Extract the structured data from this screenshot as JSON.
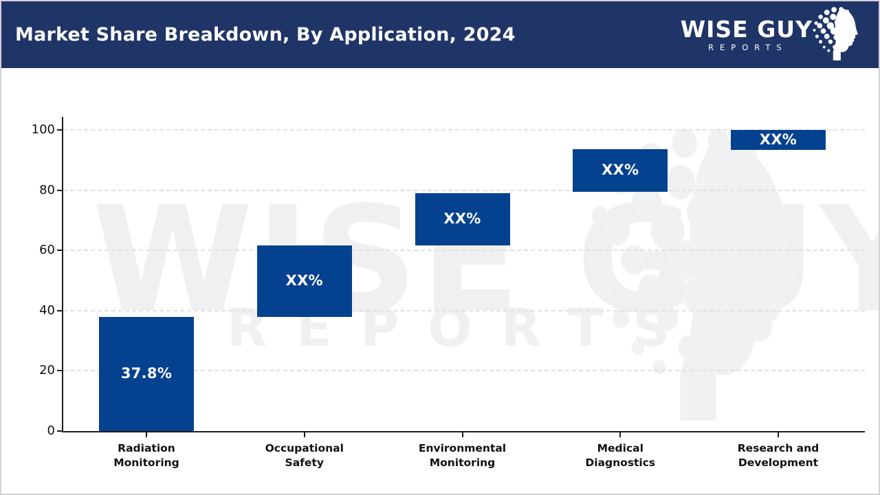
{
  "header": {
    "title": "Market Share Breakdown, By Application, 2024",
    "logo": {
      "primary": "WISE GUY",
      "secondary": "REPORTS"
    }
  },
  "watermark": {
    "primary": "WISE GUY",
    "secondary": "REPORTS"
  },
  "colors": {
    "header_bg": "#1f3467",
    "bar": "#04418f",
    "bar_label": "#ffffff",
    "watermark": "#f0f1f3",
    "gridline": "#e0e0e0",
    "axis": "#1a1a1a"
  },
  "chart_data": {
    "type": "bar",
    "subtype": "waterfall",
    "title": "Market Share Breakdown, By Application, 2024",
    "categories": [
      "Radiation Monitoring",
      "Occupational Safety",
      "Environmental Monitoring",
      "Medical Diagnostics",
      "Research and Development"
    ],
    "category_lines": [
      [
        "Radiation",
        "Monitoring"
      ],
      [
        "Occupational",
        "Safety"
      ],
      [
        "Environmental",
        "Monitoring"
      ],
      [
        "Medical",
        "Diagnostics"
      ],
      [
        "Research and",
        "Development"
      ]
    ],
    "segments": [
      {
        "category": "Radiation Monitoring",
        "start": 0,
        "end": 37.8,
        "label": "37.8%"
      },
      {
        "category": "Occupational Safety",
        "start": 37.8,
        "end": 61.6,
        "label": "XX%"
      },
      {
        "category": "Environmental Monitoring",
        "start": 61.6,
        "end": 78.9,
        "label": "XX%"
      },
      {
        "category": "Medical Diagnostics",
        "start": 79.4,
        "end": 93.6,
        "label": "XX%"
      },
      {
        "category": "Research and Development",
        "start": 93.3,
        "end": 100,
        "label": "XX%"
      }
    ],
    "xlabel": "",
    "ylabel": "",
    "yticks": [
      0,
      20,
      40,
      60,
      80,
      100
    ],
    "ylim": [
      0,
      105
    ],
    "grid": "dashed-horizontal",
    "legend": "none",
    "bar_color": "#04418f",
    "label_color": "#ffffff"
  }
}
